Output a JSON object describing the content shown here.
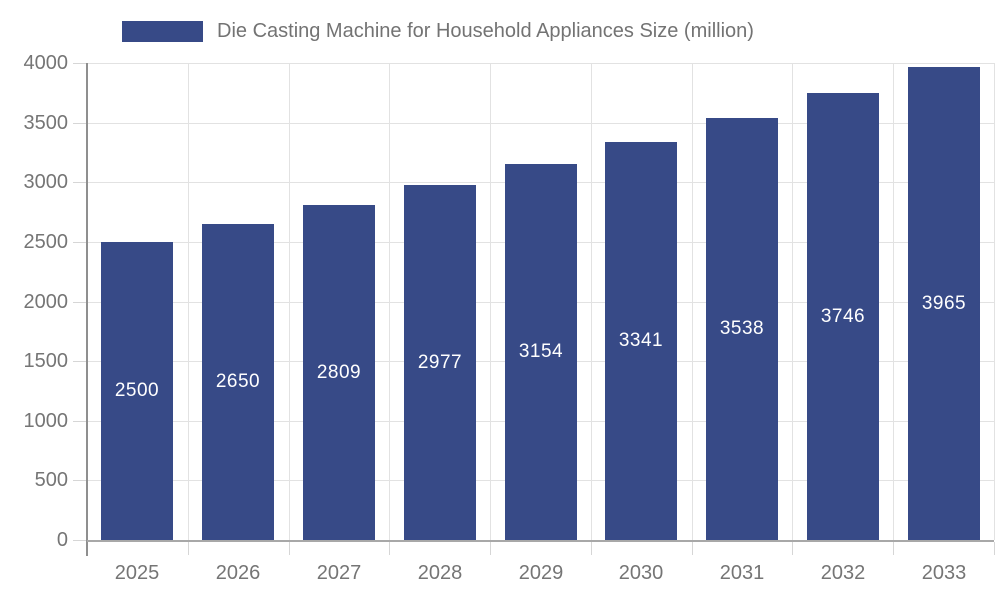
{
  "legend": {
    "label": "Die Casting Machine for Household Appliances Size (million)"
  },
  "colors": {
    "bar": "#374a87",
    "grid": "#e2e2e2",
    "axis_y": "#8f8f8f",
    "axis_x": "#a8a8a8",
    "tick": "#d6d6d6",
    "axis_text": "#757575",
    "bar_label_text": "#ffffff",
    "background": "#ffffff"
  },
  "chart_data": {
    "type": "bar",
    "title": "Die Casting Machine for Household Appliances Size (million)",
    "categories": [
      "2025",
      "2026",
      "2027",
      "2028",
      "2029",
      "2030",
      "2031",
      "2032",
      "2033"
    ],
    "values": [
      2500,
      2650,
      2809,
      2977,
      3154,
      3341,
      3538,
      3746,
      3965
    ],
    "value_labels": [
      "2500",
      "2650",
      "2809",
      "2977",
      "3154",
      "3341",
      "3538",
      "3746",
      "3965"
    ],
    "xlabel": "",
    "ylabel": "",
    "ylim": [
      0,
      4000
    ],
    "yticks": [
      0,
      500,
      1000,
      1500,
      2000,
      2500,
      3000,
      3500,
      4000
    ],
    "ytick_labels": [
      "0",
      "500",
      "1000",
      "1500",
      "2000",
      "2500",
      "3000",
      "3500",
      "4000"
    ],
    "grid": true,
    "legend_position": "top",
    "bar_labels_inside": true
  }
}
